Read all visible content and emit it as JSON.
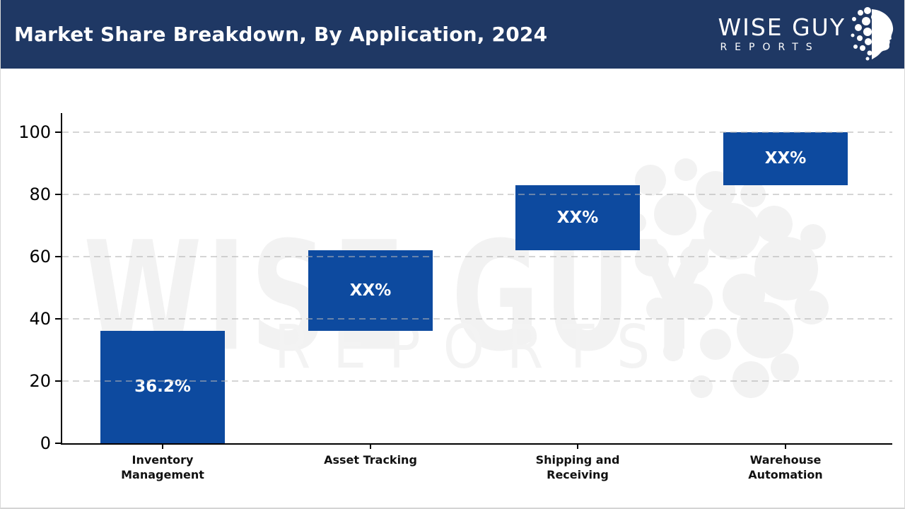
{
  "header": {
    "title": "Market Share Breakdown, By Application, 2024",
    "bg_color": "#1f3864",
    "logo": {
      "wordmark": "WISE GUY",
      "subtext": "REPORTS"
    }
  },
  "watermark": {
    "line1": "WISE GUY",
    "line2": "REPORTS"
  },
  "chart_data": {
    "type": "bar",
    "variant": "stacked-waterfall-segments",
    "title": "Market Share Breakdown, By Application, 2024",
    "categories": [
      "Inventory Management",
      "Asset Tracking",
      "Shipping and Receiving",
      "Warehouse Automation"
    ],
    "label_lines": [
      [
        "Inventory",
        "Management"
      ],
      [
        "Asset Tracking"
      ],
      [
        "Shipping and",
        "Receiving"
      ],
      [
        "Warehouse",
        "Automation"
      ]
    ],
    "series": [
      {
        "name": "Inventory Management",
        "start": 0,
        "end": 36.2,
        "label": "36.2%"
      },
      {
        "name": "Asset Tracking",
        "start": 36.2,
        "end": 62,
        "label": "XX%"
      },
      {
        "name": "Shipping and Receiving",
        "start": 62,
        "end": 83,
        "label": "XX%"
      },
      {
        "name": "Warehouse Automation",
        "start": 83,
        "end": 100,
        "label": "XX%"
      }
    ],
    "xlabel": "",
    "ylabel": "",
    "ylim": [
      0,
      100
    ],
    "yticks": [
      0,
      20,
      40,
      60,
      80,
      100
    ],
    "grid": "horizontal dashed, drawn over bars",
    "legend": "none",
    "bar_color": "#0d4a9f",
    "note": "XX% labels are placeholder values shown in the image"
  }
}
